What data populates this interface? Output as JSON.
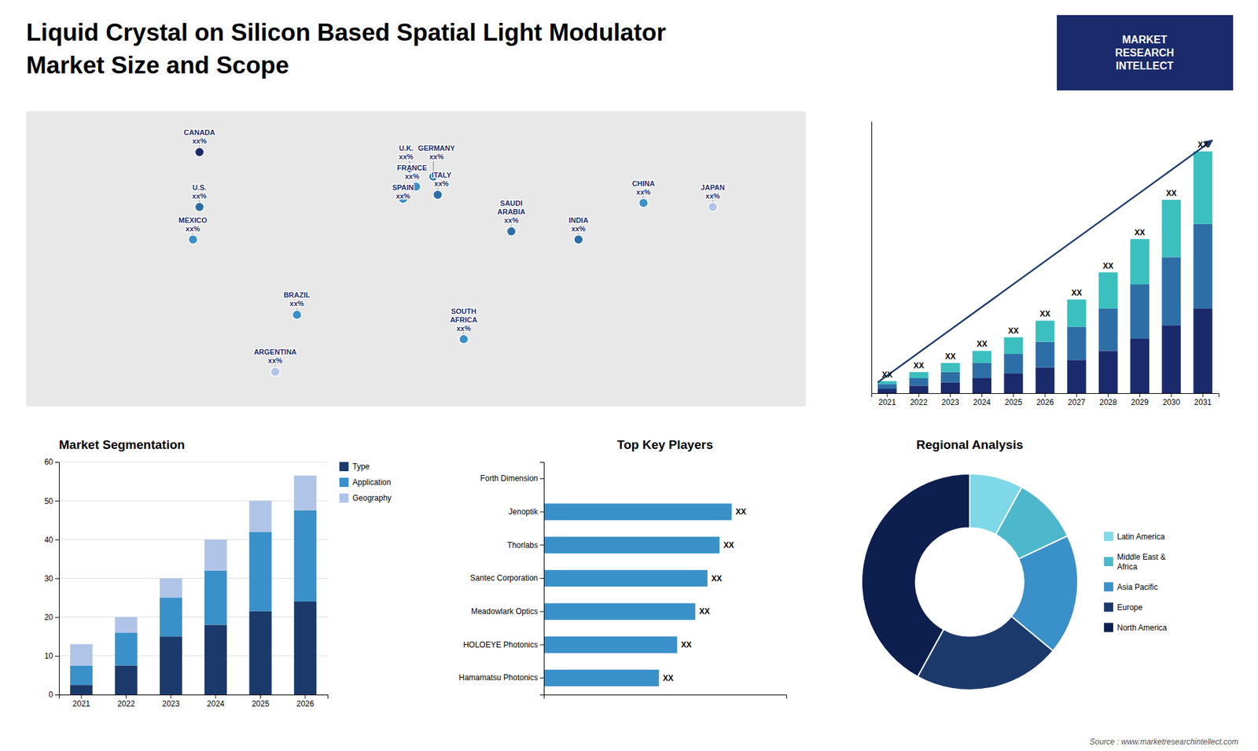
{
  "title": "Liquid Crystal on Silicon Based Spatial Light Modulator",
  "subtitle": "Market Size and Scope",
  "annotations": [
    "MARKET\nRESEARCH\nINTELLECT",
    "Source : www.marketresearchintellect.com"
  ],
  "chart_data": [
    {
      "type": "map",
      "categories": [
        "U.S.\nxx%",
        "CANADA\nxx%",
        "MEXICO\nxx%",
        "BRAZIL\nxx%",
        "ARGENTINA\nxx%",
        "U.K.\nxx%",
        "FRANCE\nxx%",
        "GERMANY\nxx%",
        "SPAIN\nxx%",
        "ITALY\nxx%",
        "SOUTH\nAFRICA\nxx%",
        "SAUDI\nARABIA\nxx%",
        "CHINA\nxx%",
        "INDIA\nxx%",
        "JAPAN\nxx%"
      ],
      "x": [
        -100,
        -100,
        -103,
        -55,
        -65,
        -3,
        0,
        8,
        -6,
        10,
        22,
        44,
        105,
        75,
        137
      ],
      "values": [
        38,
        65,
        22,
        -15,
        -43,
        57,
        48,
        53,
        42,
        44,
        -27,
        26,
        40,
        22,
        38
      ],
      "colors": [
        "#2e6ea6",
        "#1b2a6b",
        "#3a90c8",
        "#3a90c8",
        "#b0c4e8",
        "#2e6ea6",
        "#3a90c8",
        "#2e6ea6",
        "#3a90c8",
        "#2e6ea6",
        "#3a90c8",
        "#2e6ea6",
        "#3a90c8",
        "#2e6ea6",
        "#b0c4e8"
      ],
      "xlim": [
        -180,
        180
      ],
      "ylim": [
        -60,
        85
      ],
      "tick_labels": false
    },
    {
      "type": "bar",
      "stacked": true,
      "categories": [
        "2021",
        "2022",
        "2023",
        "2024",
        "2025",
        "2026",
        "2027",
        "2028",
        "2029",
        "2030",
        "2031"
      ],
      "series": [
        {
          "color": "#1b2a6b",
          "values": [
            1.5,
            2.5,
            3.5,
            5.0,
            6.5,
            8.5,
            11.0,
            14.0,
            18.0,
            22.5,
            28.0
          ]
        },
        {
          "color": "#2e6ea6",
          "values": [
            1.5,
            2.5,
            3.5,
            5.0,
            6.5,
            8.5,
            11.0,
            14.0,
            18.0,
            22.5,
            28.0
          ]
        },
        {
          "color": "#3bbfbf",
          "values": [
            1.0,
            2.0,
            3.0,
            4.0,
            5.5,
            7.0,
            9.0,
            12.0,
            15.0,
            19.0,
            24.0
          ]
        }
      ],
      "annotations": [
        "XX",
        "XX",
        "XX",
        "XX",
        "XX",
        "XX",
        "XX",
        "XX",
        "XX",
        "XX",
        "XX"
      ],
      "ylim": [
        0,
        90
      ],
      "tick_labels": "x"
    },
    {
      "type": "bar",
      "title": "Market Segmentation",
      "stacked": true,
      "categories": [
        "2021",
        "2022",
        "2023",
        "2024",
        "2025",
        "2026"
      ],
      "series": [
        {
          "name": "Type",
          "color": "#1b3a6b",
          "values": [
            2.5,
            7.5,
            15.0,
            18.0,
            21.5,
            24.0
          ]
        },
        {
          "name": "Application",
          "color": "#3a90c8",
          "values": [
            5.0,
            8.5,
            10.0,
            14.0,
            20.5,
            23.5
          ]
        },
        {
          "name": "Geography",
          "color": "#b0c4e8",
          "values": [
            5.5,
            4.0,
            5.0,
            8.0,
            8.0,
            9.0
          ]
        }
      ],
      "ylim": [
        0,
        60
      ],
      "yticks": [
        0,
        10,
        20,
        30,
        40,
        50,
        60
      ],
      "grid": true,
      "legend": "right"
    },
    {
      "type": "bar",
      "title": "Top Key Players",
      "orientation": "horizontal",
      "categories": [
        "Forth Dimension",
        "Jenoptik",
        "Thorlabs",
        "Santec Corporation",
        "Meadowlark Optics",
        "HOLOEYE Photonics",
        "Hamamatsu Photonics"
      ],
      "values": [
        0,
        62,
        58,
        54,
        50,
        44,
        38
      ],
      "color": "#3a90c8",
      "data_labels": true,
      "value_labels": [
        null,
        "XX",
        "XX",
        "XX",
        "XX",
        "XX",
        "XX"
      ],
      "xlim": [
        0,
        80
      ],
      "tick_labels": "y"
    },
    {
      "type": "pie",
      "title": "Regional Analysis",
      "categories": [
        "Latin America",
        "Middle East &\nAfrica",
        "Asia Pacific",
        "Europe",
        "North America"
      ],
      "values": [
        8,
        10,
        18,
        22,
        42
      ],
      "colors": [
        "#7fd8e8",
        "#4db8cc",
        "#3a90c8",
        "#1b3a6b",
        "#0d1f4e"
      ],
      "legend": "right"
    }
  ]
}
